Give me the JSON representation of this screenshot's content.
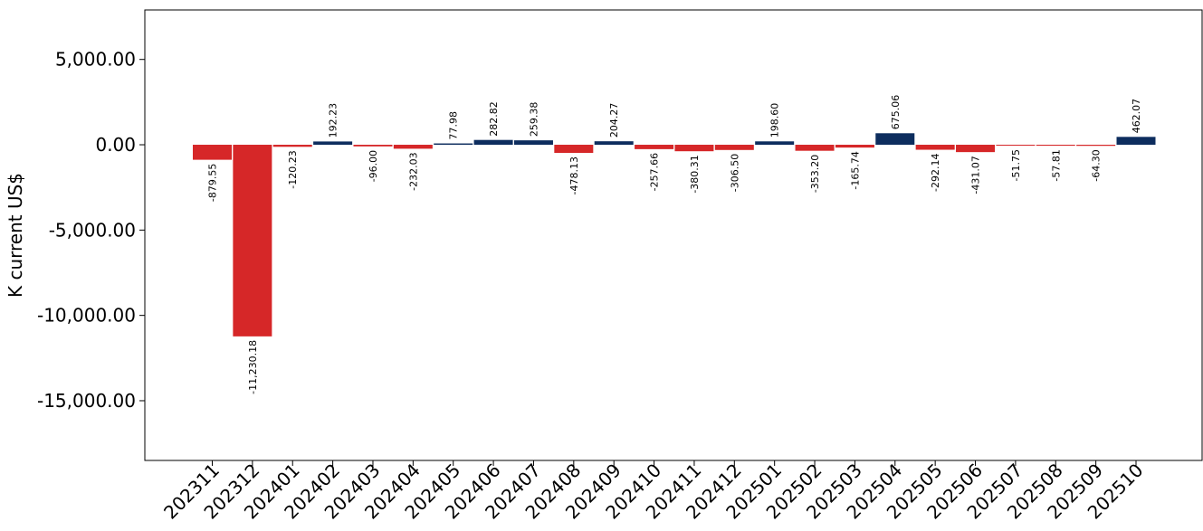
{
  "chart_data": {
    "type": "bar",
    "title": "",
    "xlabel": "",
    "ylabel": "K current US$",
    "ylim": [
      -18500,
      7900
    ],
    "yticks": [
      5000,
      0,
      -5000,
      -10000,
      -15000
    ],
    "ytick_labels": [
      "5,000.00",
      "0.00",
      "-5,000.00",
      "-10,000.00",
      "-15,000.00"
    ],
    "grid": false,
    "legend": "none",
    "colors": {
      "negative": "#d62728",
      "positive": "#0d2d5e"
    },
    "categories": [
      "202311",
      "202312",
      "202401",
      "202402",
      "202403",
      "202404",
      "202405",
      "202406",
      "202407",
      "202408",
      "202409",
      "202410",
      "202411",
      "202412",
      "202501",
      "202502",
      "202503",
      "202504",
      "202505",
      "202506",
      "202507",
      "202508",
      "202509",
      "202510"
    ],
    "values": [
      -879.55,
      -11230.18,
      -120.23,
      192.23,
      -96.0,
      -232.03,
      77.98,
      282.82,
      259.38,
      -478.13,
      204.27,
      -257.66,
      -380.31,
      -306.5,
      198.6,
      -353.2,
      -165.74,
      675.06,
      -292.14,
      -431.07,
      -51.75,
      -57.81,
      -64.3,
      462.07
    ],
    "value_labels": [
      "-879.55",
      "-11,230.18",
      "-120.23",
      "192.23",
      "-96.00",
      "-232.03",
      "77.98",
      "282.82",
      "259.38",
      "-478.13",
      "204.27",
      "-257.66",
      "-380.31",
      "-306.50",
      "198.60",
      "-353.20",
      "-165.74",
      "675.06",
      "-292.14",
      "-431.07",
      "-51.75",
      "-57.81",
      "-64.30",
      "462.07"
    ]
  }
}
